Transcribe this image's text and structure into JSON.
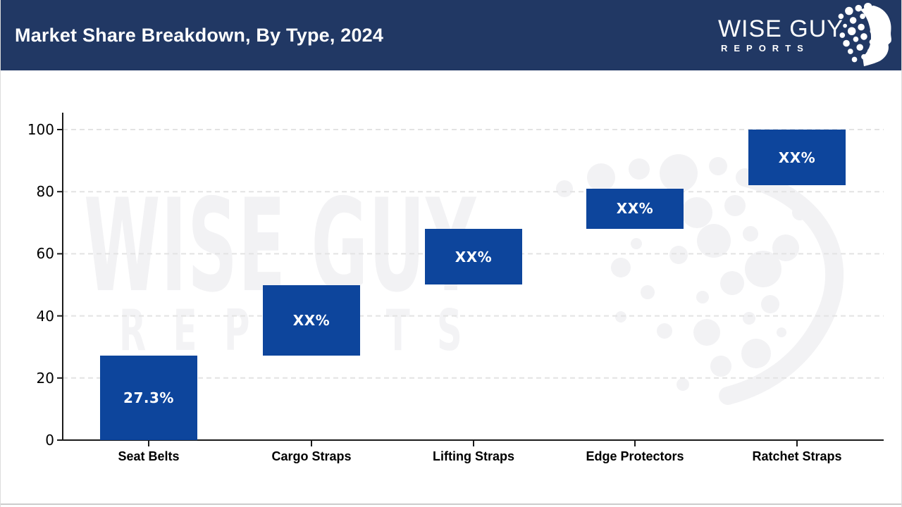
{
  "header": {
    "title": "Market Share Breakdown, By Type, 2024",
    "logo": {
      "line1": "WISE GUY",
      "line2": "REPORTS",
      "face_icon": "dotted-face-profile"
    }
  },
  "watermark": {
    "line1": "WISE GUY",
    "line2": "REPORTS"
  },
  "colors": {
    "header_bg": "#213864",
    "title_text": "#ffffff",
    "bar": "#0d459c",
    "bar_label": "#ffffff",
    "gridline": "#e3e3e3",
    "axis": "#1a1a1a",
    "watermark": "#f2f2f4"
  },
  "chart_data": {
    "type": "bar",
    "subtype": "waterfall-floating-bars",
    "title": "Market Share Breakdown, By Type, 2024",
    "categories": [
      "Seat Belts",
      "Cargo Straps",
      "Lifting Straps",
      "Edge Protectors",
      "Ratchet Straps"
    ],
    "segments": [
      {
        "category": "Seat Belts",
        "start": 0,
        "end": 27.3,
        "label": "27.3%"
      },
      {
        "category": "Cargo Straps",
        "start": 27.3,
        "end": 50,
        "label": "XX%"
      },
      {
        "category": "Lifting Straps",
        "start": 50,
        "end": 68,
        "label": "XX%"
      },
      {
        "category": "Edge Protectors",
        "start": 68,
        "end": 81,
        "label": "XX%"
      },
      {
        "category": "Ratchet Straps",
        "start": 82,
        "end": 100,
        "label": "XX%"
      }
    ],
    "xlabel": "",
    "ylabel": "",
    "ylim": [
      0,
      100
    ],
    "yticks": [
      0,
      20,
      40,
      60,
      80,
      100
    ],
    "grid": "dashed-horizontal",
    "legend": false
  }
}
